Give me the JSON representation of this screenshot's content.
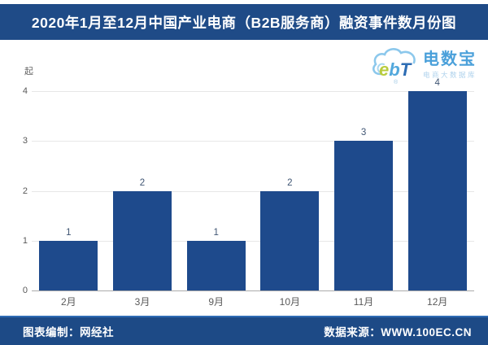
{
  "header": {
    "title": "2020年1月至12月中国产业电商（B2B服务商）融资事件数月份图",
    "bg_color": "#1f4b87"
  },
  "logo": {
    "cloud_text": "ebT",
    "name": "电数宝",
    "tagline": "电商大数据库",
    "name_color": "#4aa0da",
    "tagline_color": "#aed2ec",
    "cloud_color": "#8cc8ec"
  },
  "chart_data": {
    "type": "bar",
    "title": "2020年1月至12月中国产业电商（B2B服务商）融资事件数月份图",
    "categories": [
      "2月",
      "3月",
      "9月",
      "10月",
      "11月",
      "12月"
    ],
    "values": [
      1,
      2,
      1,
      2,
      3,
      4
    ],
    "unit_label": "起",
    "xlabel": "",
    "ylabel": "起",
    "y_ticks": [
      0,
      1,
      2,
      3,
      4
    ],
    "ylim": [
      0,
      4
    ],
    "grid": true,
    "legend": "none",
    "bar_color": "#1e4a8c",
    "value_label_color": "#3f5573"
  },
  "footer": {
    "left": "图表编制：网经社",
    "right": "数据来源：WWW.100EC.CN",
    "bg_color": "#1d4a86"
  }
}
